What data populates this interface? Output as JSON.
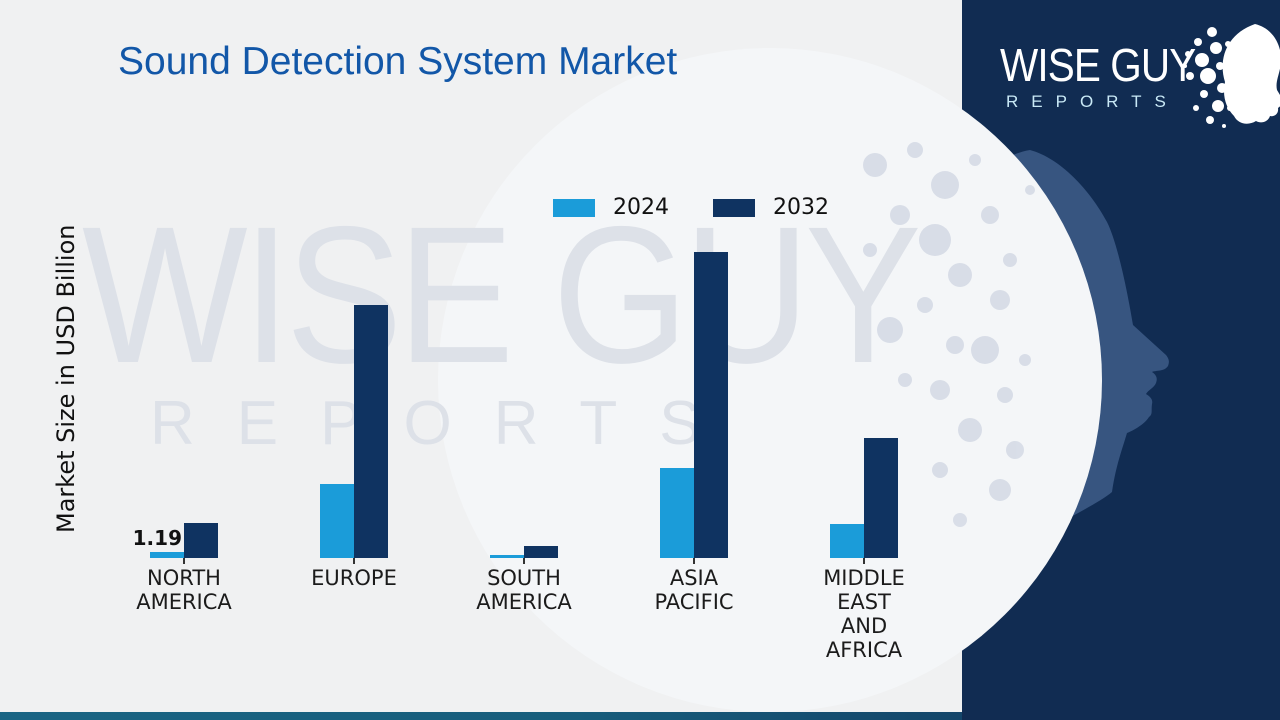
{
  "header": {
    "title": "Sound Detection System Market"
  },
  "watermark": {
    "line1": "WISE GUY",
    "line2": "REPORTS"
  },
  "logo": {
    "line1": "WISE GUY",
    "line2": "REPORTS"
  },
  "colors": {
    "background": "#f0f1f2",
    "panel_navy": "#112c52",
    "title_blue": "#1257a8",
    "series_2024": "#1b9cd9",
    "series_2032": "#0f3361",
    "accent_teal": "#17607f",
    "watermark_gray": "#dde1e8"
  },
  "chart_data": {
    "type": "bar",
    "title": "Sound Detection System Market",
    "xlabel": "",
    "ylabel": "Market Size in USD Billion",
    "categories": [
      "NORTH AMERICA",
      "EUROPE",
      "SOUTH AMERICA",
      "ASIA PACIFIC",
      "MIDDLE EAST AND AFRICA"
    ],
    "series": [
      {
        "name": "2024",
        "color": "#1b9cd9",
        "values": [
          1.19,
          14.7,
          0.6,
          17.8,
          6.7
        ]
      },
      {
        "name": "2032",
        "color": "#0f3361",
        "values": [
          6.9,
          50.2,
          2.4,
          60.7,
          23.8
        ]
      }
    ],
    "annotations": [
      {
        "text": "1.19",
        "series": "2024",
        "category": "NORTH AMERICA"
      }
    ],
    "ylim": [
      0,
      65
    ],
    "grid": false,
    "legend_position": "top-center"
  }
}
